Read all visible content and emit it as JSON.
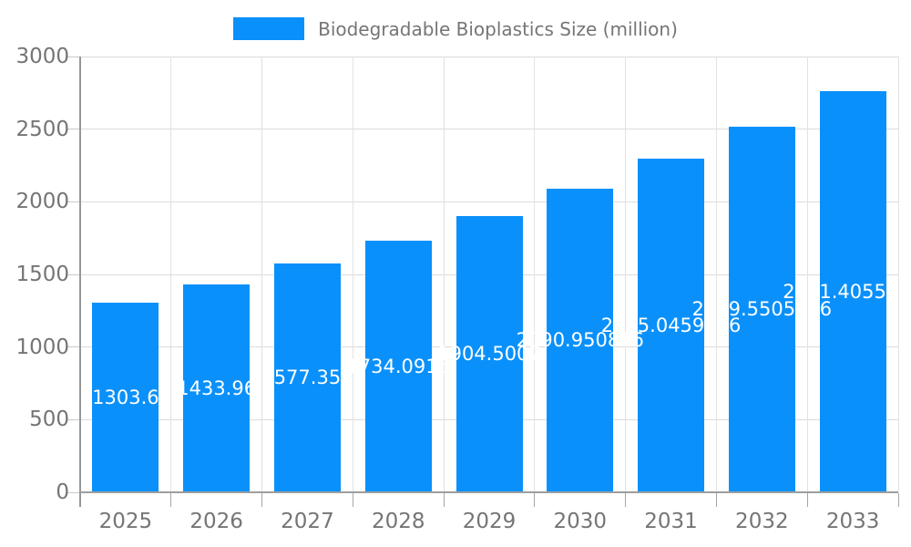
{
  "chart_data": {
    "type": "bar",
    "title": "Biodegradable Bioplastics Size (million)",
    "legend_position": "top",
    "categories": [
      "2025",
      "2026",
      "2027",
      "2028",
      "2029",
      "2030",
      "2031",
      "2032",
      "2033"
    ],
    "values": [
      1303.6,
      1433.96,
      1577.356,
      1734.0916,
      1904.5007,
      2090.950816,
      2295.0459156,
      2519.5505156,
      2761.4055678
    ],
    "value_labels": [
      "1303.6",
      "1433.96",
      "1577.356",
      "1734.0916",
      "1904.5007",
      "2090.950816",
      "2295.0459156",
      "2519.5505156",
      "2761.4055678"
    ],
    "xlabel": "",
    "ylabel": "",
    "ylim": [
      0,
      3000
    ],
    "yticks": [
      0,
      500,
      1000,
      1500,
      2000,
      2500,
      3000
    ],
    "grid": true,
    "colors": {
      "bar": "#0a90fa",
      "value_label": "#ffffff",
      "axis_text": "#757575",
      "gridline": "#dbdbdb",
      "axis_line": "#979797",
      "baseline": "#9e9e9e"
    }
  }
}
